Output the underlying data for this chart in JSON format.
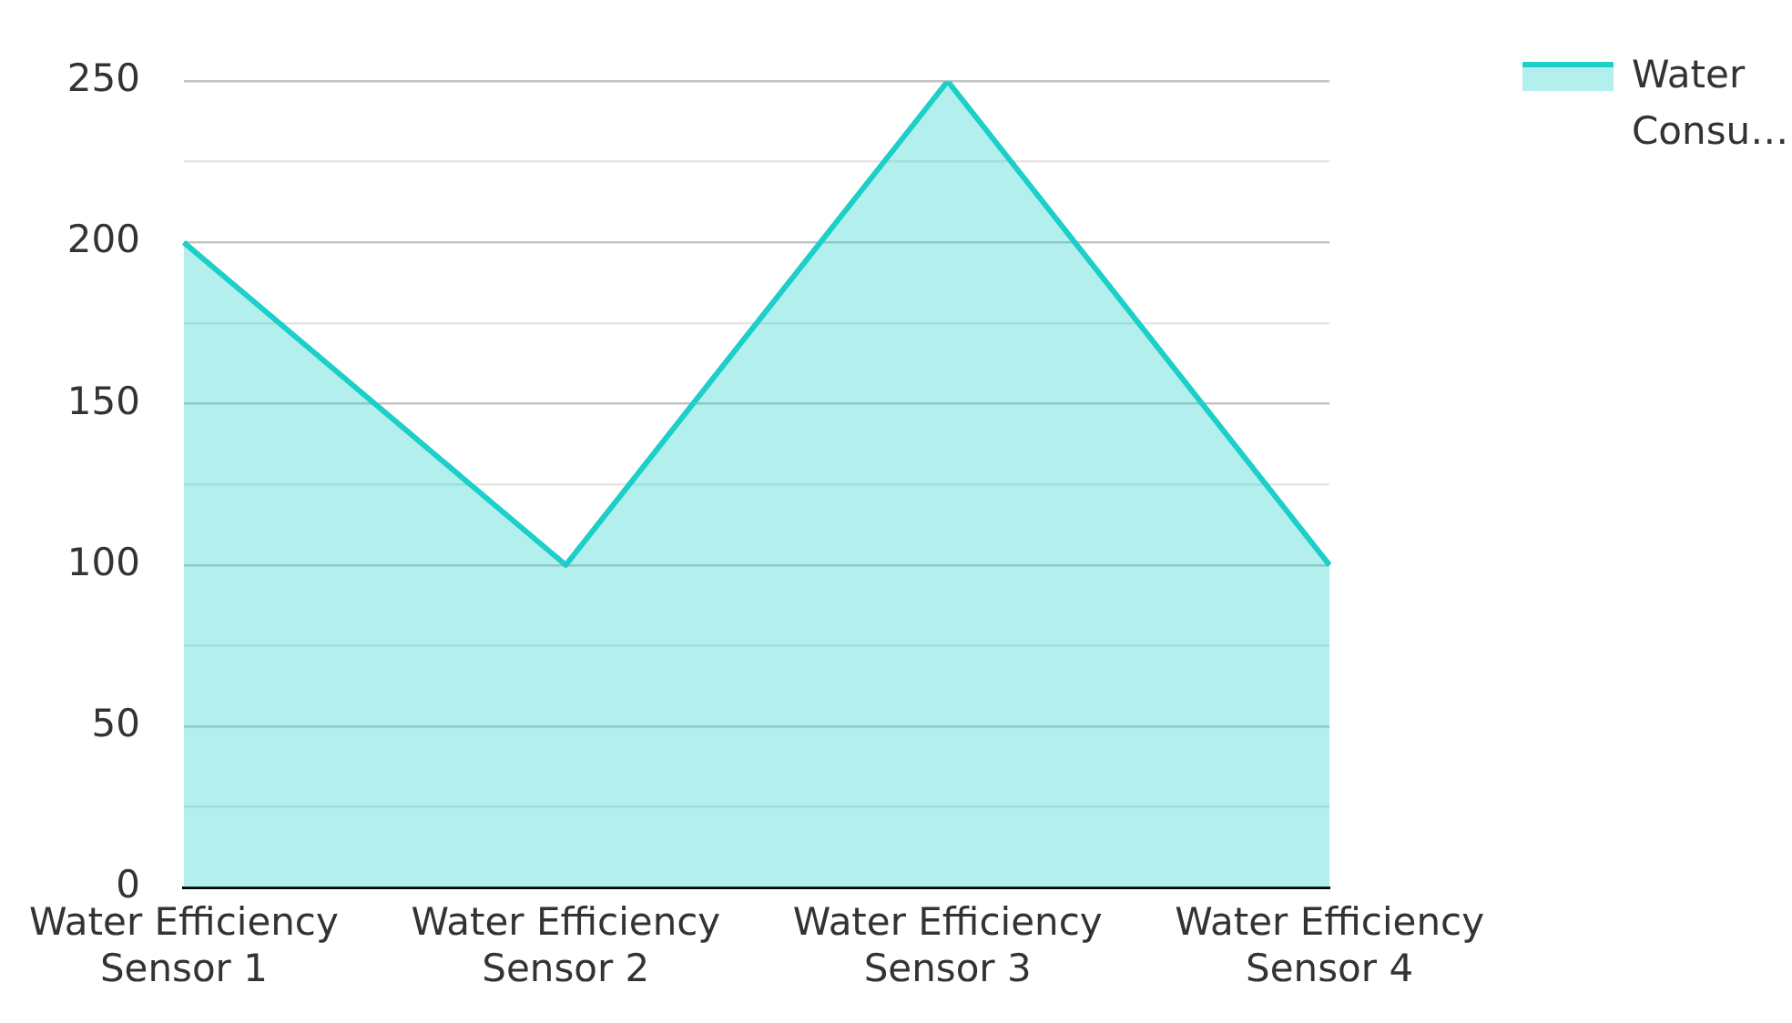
{
  "chart_data": {
    "type": "area",
    "categories": [
      "Water Efficiency Sensor 1",
      "Water Efficiency Sensor 2",
      "Water Efficiency Sensor 3",
      "Water Efficiency Sensor 4"
    ],
    "series": [
      {
        "name": "Water Consu…",
        "color": "#1ccfc9",
        "values": [
          200,
          100,
          250,
          100
        ]
      }
    ],
    "ylim": [
      0,
      250
    ],
    "yticks": [
      0,
      {
        "value": 25,
        "label": null
      },
      50,
      {
        "value": 75,
        "label": null
      },
      100,
      {
        "value": 125,
        "label": null
      },
      150,
      {
        "value": 175,
        "label": null
      },
      200,
      {
        "value": 225,
        "label": null
      },
      250
    ],
    "grid": "y",
    "legend": "top right"
  }
}
